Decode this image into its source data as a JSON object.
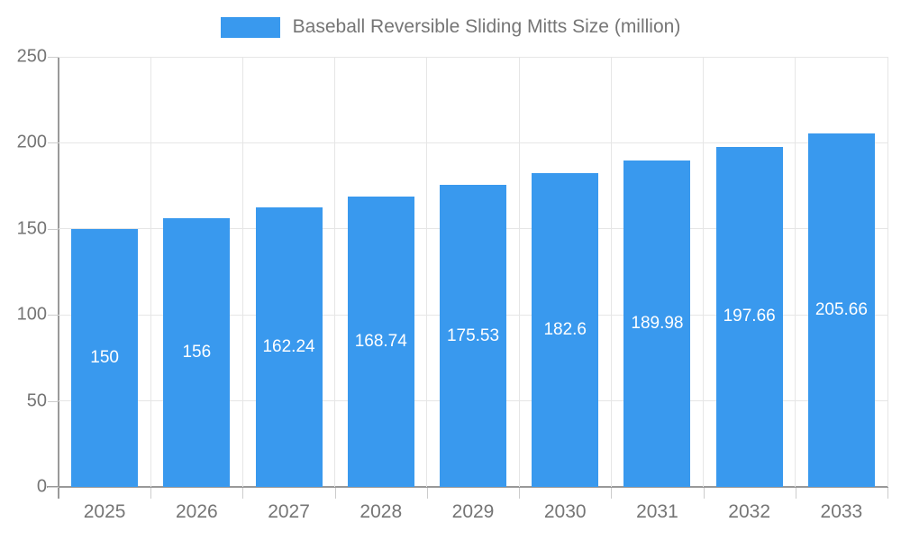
{
  "chart_data": {
    "type": "bar",
    "title": "Baseball Reversible Sliding Mitts Size (million)",
    "categories": [
      "2025",
      "2026",
      "2027",
      "2028",
      "2029",
      "2030",
      "2031",
      "2032",
      "2033"
    ],
    "values": [
      150,
      156,
      162.24,
      168.74,
      175.53,
      182.6,
      189.98,
      197.66,
      205.66
    ],
    "value_labels": [
      "150",
      "156",
      "162.24",
      "168.74",
      "175.53",
      "182.6",
      "189.98",
      "197.66",
      "205.66"
    ],
    "xlabel": "",
    "ylabel": "",
    "ylim": [
      0,
      250
    ],
    "yticks": [
      0,
      50,
      100,
      150,
      200,
      250
    ],
    "grid": "on",
    "legend_position": "top-center",
    "colors": {
      "bar": "#3999EE",
      "bar_value_text": "#ffffff",
      "axis_line": "#999999",
      "tick_mark": "#cccccc",
      "gridline": "#e6e6e6",
      "axis_text": "#757575",
      "legend_text": "#757575",
      "background": "#ffffff"
    }
  }
}
